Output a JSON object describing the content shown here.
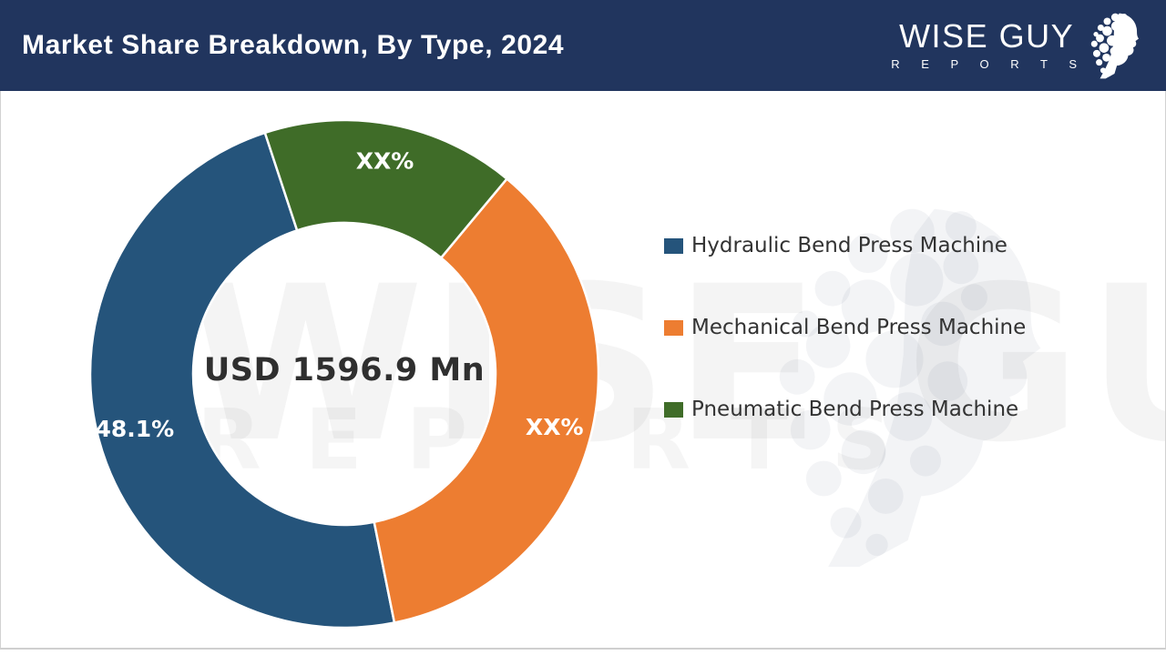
{
  "header": {
    "title": "Market Share Breakdown, By Type, 2024",
    "bg_color": "#21355e",
    "logo": {
      "wordmark": "WISE GUY",
      "subtext": "R E P O R T S"
    }
  },
  "watermark": {
    "wordmark": "WISE GU",
    "subtext": "REPORTS"
  },
  "chart_data": {
    "type": "pie",
    "subtype": "donut",
    "title": "Market Share Breakdown, By Type, 2024",
    "center_label": "USD 1596.9 Mn",
    "total_value": "USD 1596.9 Mn",
    "start_angle_deg": 108.2,
    "direction": "counterclockwise",
    "legend_position": "right",
    "segments": [
      {
        "name": "Hydraulic Bend Press Machine",
        "share_pct": 48.1,
        "label": "48.1%",
        "color": "#25547b"
      },
      {
        "name": "Mechanical Bend Press Machine",
        "share_pct": 35.8,
        "label": "XX%",
        "color": "#ed7d31"
      },
      {
        "name": "Pneumatic Bend Press Machine",
        "share_pct": 16.1,
        "label": "XX%",
        "color": "#3f6c28"
      }
    ]
  }
}
